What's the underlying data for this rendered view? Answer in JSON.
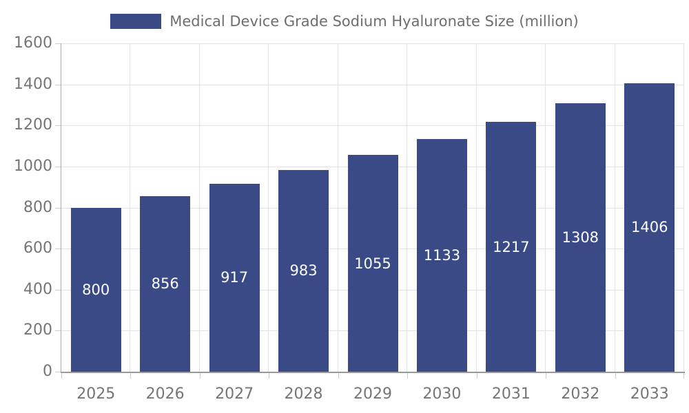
{
  "legend": {
    "label": "Medical Device Grade Sodium Hyaluronate Size (million)"
  },
  "chart_data": {
    "type": "bar",
    "title": "Medical Device Grade Sodium Hyaluronate Size (million)",
    "categories": [
      "2025",
      "2026",
      "2027",
      "2028",
      "2029",
      "2030",
      "2031",
      "2032",
      "2033"
    ],
    "values": [
      800,
      856,
      917,
      983,
      1055,
      1133,
      1217,
      1308,
      1406
    ],
    "series_name": "Medical Device Grade Sodium Hyaluronate Size (million)",
    "xlabel": "",
    "ylabel": "",
    "ylim": [
      0,
      1600
    ],
    "y_ticks": [
      0,
      200,
      400,
      600,
      800,
      1000,
      1200,
      1400,
      1600
    ],
    "grid": true,
    "legend_position": "top-center",
    "bar_value_labels": "inside-center",
    "colors": {
      "bar": "#3a4a87",
      "bar_label_text": "#ffffff",
      "grid_line": "#e2e2e2",
      "axis_line": "#aaaaaa",
      "x_axis_line": "#999999",
      "tick_mark": "#cccccc",
      "axis_text": "#757575",
      "legend_text": "#6e6e6e",
      "background": "#ffffff"
    }
  }
}
